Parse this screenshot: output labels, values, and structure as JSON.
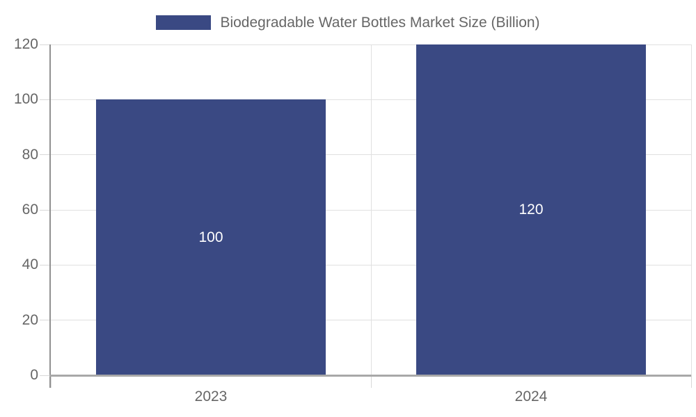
{
  "chart_data": {
    "type": "bar",
    "legend_label": "Biodegradable Water Bottles Market Size (Billion)",
    "legend_position": "top",
    "categories": [
      "2023",
      "2024"
    ],
    "series": [
      {
        "name": "Biodegradable Water Bottles Market Size (Billion)",
        "values": [
          100,
          120
        ]
      }
    ],
    "data_labels": [
      "100",
      "120"
    ],
    "ylim": [
      0,
      120
    ],
    "yticks": [
      0,
      20,
      40,
      60,
      80,
      100,
      120
    ],
    "grid": true,
    "colors": {
      "bar": "#3A4983",
      "axis_text": "#666666",
      "grid_line": "#E0E0E0",
      "tick_line": "#D8D8D8",
      "y_axis_line": "#909090",
      "x_axis_line": "#A8A8A8",
      "bar_label_text": "#FFFFFF"
    }
  }
}
